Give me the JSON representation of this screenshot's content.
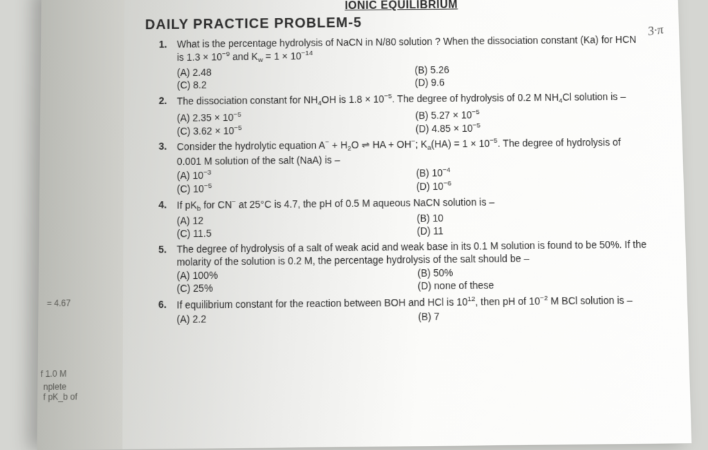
{
  "header": {
    "topic": "IONIC EQUILIBRIUM",
    "title": "DAILY PRACTICE PROBLEM-5"
  },
  "scribble": "3·π",
  "margin_notes": {
    "n1": "= 4.67",
    "n2": "f 1.0 M",
    "n3": "nplete",
    "n4": "f pK_b of"
  },
  "q1": {
    "num": "1.",
    "text_html": "What is the percentage hydrolysis of NaCN in N/80 solution ? When the dissociation constant (Ka) for HCN is 1.3 × 10<sup>−9</sup> and K<sub>w</sub> = 1 × 10<sup>−14</sup>",
    "opts": {
      "a": "(A) 2.48",
      "b": "(B) 5.26",
      "c": "(C) 8.2",
      "d": "(D) 9.6"
    }
  },
  "q2": {
    "num": "2.",
    "text_html": "The dissociation constant for NH<sub>4</sub>OH is 1.8 × 10<sup>−5</sup>. The degree of hydrolysis of 0.2 M NH<sub>4</sub>Cl solution is –",
    "opts": {
      "a": "(A) 2.35 × 10<sup>−5</sup>",
      "b": "(B) 5.27 × 10<sup>−5</sup>",
      "c": "(C) 3.62 × 10<sup>−5</sup>",
      "d": "(D) 4.85 × 10<sup>−5</sup>"
    }
  },
  "q3": {
    "num": "3.",
    "text_html": "Consider the hydrolytic equation A<sup>−</sup> + H<sub>2</sub>O ⇌ HA + OH<sup>−</sup>; K<sub>a</sub>(HA) = 1 × 10<sup>−5</sup>. The degree of hydrolysis of 0.001 M solution of the salt (NaA) is –",
    "opts": {
      "a": "(A) 10<sup>−3</sup>",
      "b": "(B) 10<sup>−4</sup>",
      "c": "(C) 10<sup>−5</sup>",
      "d": "(D) 10<sup>−6</sup>"
    }
  },
  "q4": {
    "num": "4.",
    "text_html": "If pK<sub>b</sub> for CN<sup>−</sup> at 25°C is 4.7, the pH of 0.5 M aqueous NaCN solution is –",
    "opts": {
      "a": "(A) 12",
      "b": "(B) 10",
      "c": "(C) 11.5",
      "d": "(D) 11"
    }
  },
  "q5": {
    "num": "5.",
    "text_html": "The degree of hydrolysis of a salt of weak acid and weak base in its 0.1 M solution is found to be 50%. If the molarity of the solution is 0.2 M, the percentage hydrolysis of the salt should be –",
    "opts": {
      "a": "(A) 100%",
      "b": "(B) 50%",
      "c": "(C) 25%",
      "d": "(D) none of these"
    }
  },
  "q6": {
    "num": "6.",
    "text_html": "If equilibrium constant for the reaction between BOH and HCl is 10<sup>12</sup>, then pH of 10<sup>−2</sup> M BCl solution is –",
    "opts": {
      "a": "(A) 2.2",
      "b": "(B) 7"
    }
  }
}
